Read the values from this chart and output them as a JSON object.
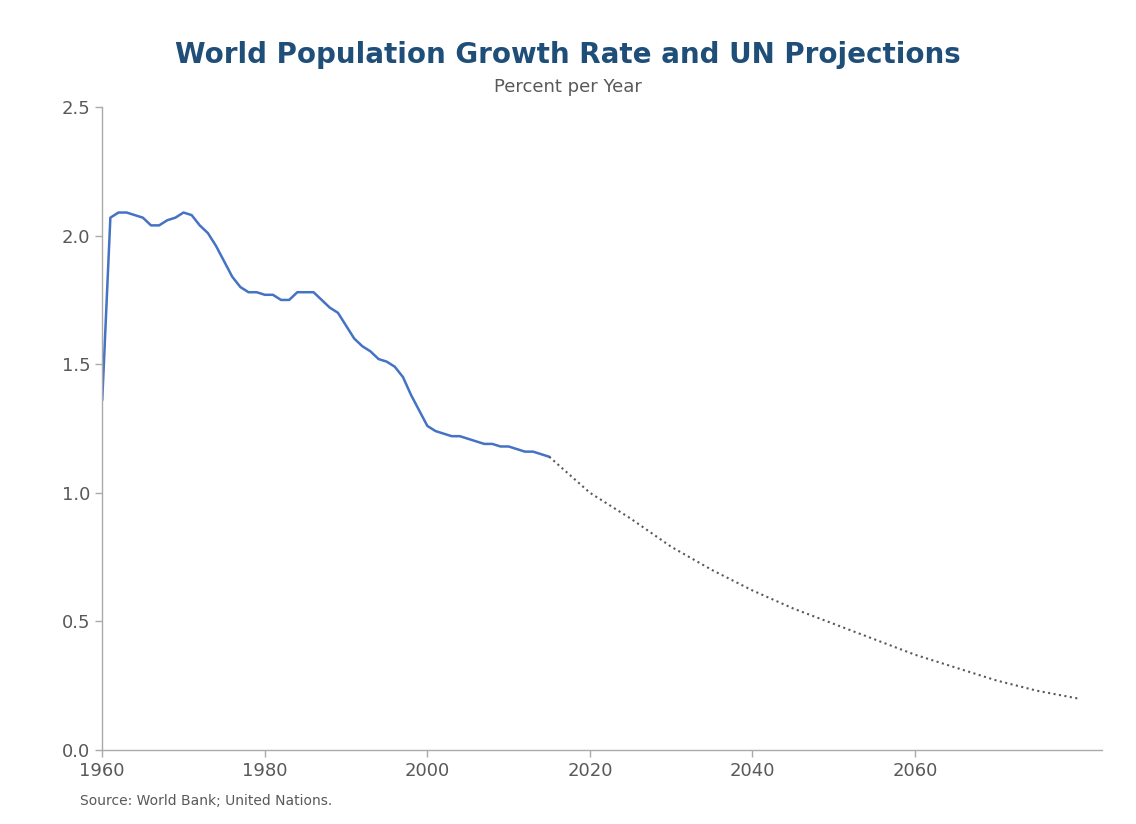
{
  "title": "World Population Growth Rate and UN Projections",
  "subtitle": "Percent per Year",
  "source": "Source: World Bank; United Nations.",
  "title_color": "#1F4E79",
  "subtitle_color": "#595959",
  "line_color": "#4472C4",
  "dotted_color": "#595959",
  "background_color": "#FFFFFF",
  "xlim": [
    1960,
    2083
  ],
  "ylim": [
    0.0,
    2.5
  ],
  "yticks": [
    0.0,
    0.5,
    1.0,
    1.5,
    2.0,
    2.5
  ],
  "xticks": [
    1960,
    1980,
    2000,
    2020,
    2040,
    2060
  ],
  "solid_data": {
    "years": [
      1960,
      1961,
      1962,
      1963,
      1964,
      1965,
      1966,
      1967,
      1968,
      1969,
      1970,
      1971,
      1972,
      1973,
      1974,
      1975,
      1976,
      1977,
      1978,
      1979,
      1980,
      1981,
      1982,
      1983,
      1984,
      1985,
      1986,
      1987,
      1988,
      1989,
      1990,
      1991,
      1992,
      1993,
      1994,
      1995,
      1996,
      1997,
      1998,
      1999,
      2000,
      2001,
      2002,
      2003,
      2004,
      2005,
      2006,
      2007,
      2008,
      2009,
      2010,
      2011,
      2012,
      2013,
      2014,
      2015
    ],
    "values": [
      1.36,
      2.07,
      2.09,
      2.09,
      2.08,
      2.07,
      2.04,
      2.04,
      2.06,
      2.07,
      2.09,
      2.08,
      2.04,
      2.01,
      1.96,
      1.9,
      1.84,
      1.8,
      1.78,
      1.78,
      1.77,
      1.77,
      1.75,
      1.75,
      1.78,
      1.78,
      1.78,
      1.75,
      1.72,
      1.7,
      1.65,
      1.6,
      1.57,
      1.55,
      1.52,
      1.51,
      1.49,
      1.45,
      1.38,
      1.32,
      1.26,
      1.24,
      1.23,
      1.22,
      1.22,
      1.21,
      1.2,
      1.19,
      1.19,
      1.18,
      1.18,
      1.17,
      1.16,
      1.16,
      1.15,
      1.14
    ]
  },
  "dotted_data": {
    "years": [
      2015,
      2020,
      2025,
      2030,
      2035,
      2040,
      2045,
      2050,
      2055,
      2060,
      2065,
      2070,
      2075,
      2080
    ],
    "values": [
      1.14,
      1.0,
      0.9,
      0.79,
      0.7,
      0.62,
      0.55,
      0.49,
      0.43,
      0.37,
      0.32,
      0.27,
      0.23,
      0.2
    ]
  }
}
